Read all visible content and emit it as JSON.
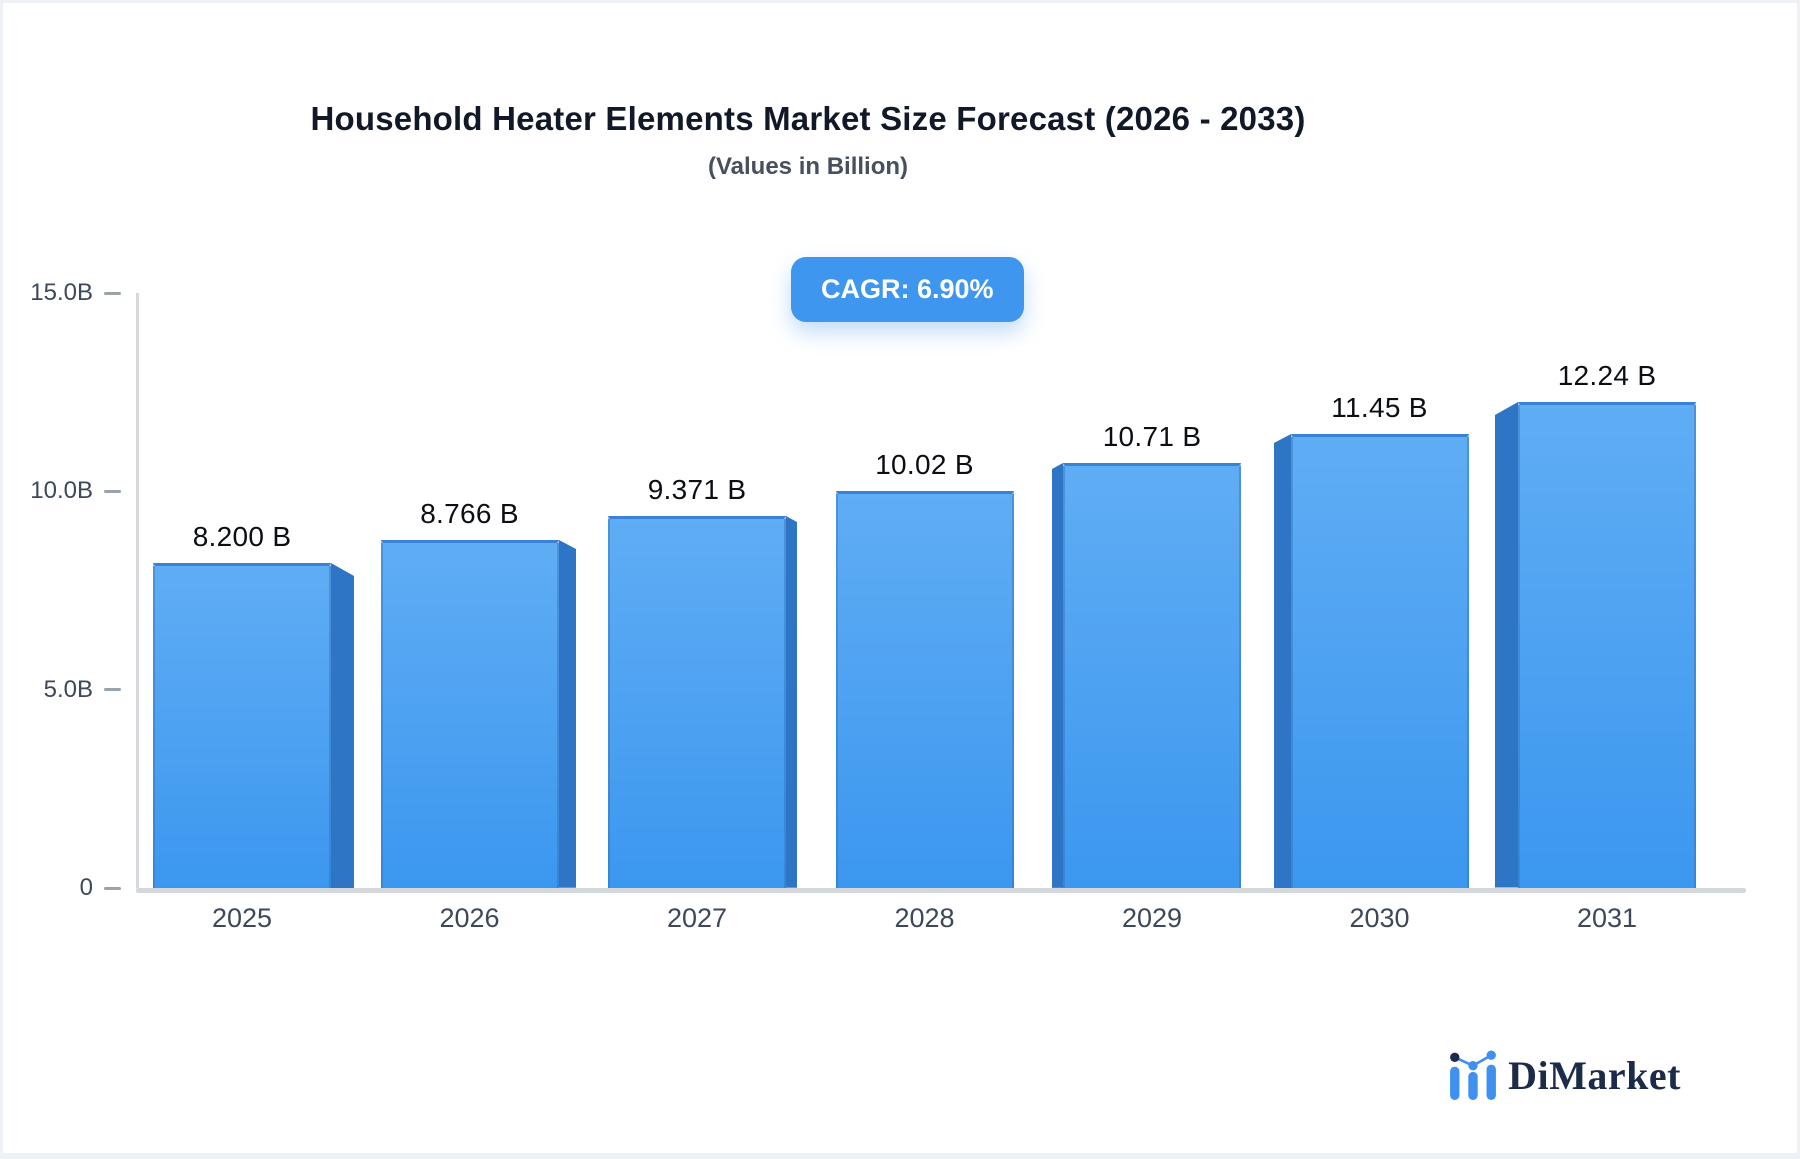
{
  "header": {
    "title": "Household Heater Elements Market Size Forecast (2026 - 2033)",
    "subtitle": "(Values in Billion)"
  },
  "badge": {
    "label": "CAGR: 6.90%",
    "background": "#3e96ee",
    "text_color": "#ffffff"
  },
  "chart_data": {
    "type": "bar",
    "title": "Household Heater Elements Market Size Forecast (2026 - 2033)",
    "subtitle": "(Values in Billion)",
    "categories": [
      "2025",
      "2026",
      "2027",
      "2028",
      "2029",
      "2030",
      "2031"
    ],
    "values": [
      8.2,
      8.766,
      9.371,
      10.02,
      10.71,
      11.45,
      12.24
    ],
    "value_labels": [
      "8.200 B",
      "8.766 B",
      "9.371 B",
      "10.02 B",
      "10.71 B",
      "11.45 B",
      "12.24 B"
    ],
    "unit": "Billion",
    "ylim": [
      0,
      15
    ],
    "y_ticks": [
      {
        "value": 15,
        "label": "15.0B"
      },
      {
        "value": 10,
        "label": "10.0B"
      },
      {
        "value": 5,
        "label": "5.0B"
      },
      {
        "value": 0,
        "label": "0"
      }
    ],
    "grid": false,
    "legend": false,
    "style_3d": true,
    "colors": {
      "bar_top": "#5fadf4",
      "bar_bottom": "#3c97ef",
      "bar_side": "#2e76c5",
      "axis_line": "#d4d7dc",
      "tick_dash": "#9aa2ad",
      "value_label": "#0b0f14",
      "axis_label": "#3d4858"
    }
  },
  "logo": {
    "text": "DiMarket",
    "text_color": "#1c2b4a",
    "icon_color": "#4090f0",
    "icon_first_dot_color": "#1c2b4a"
  }
}
